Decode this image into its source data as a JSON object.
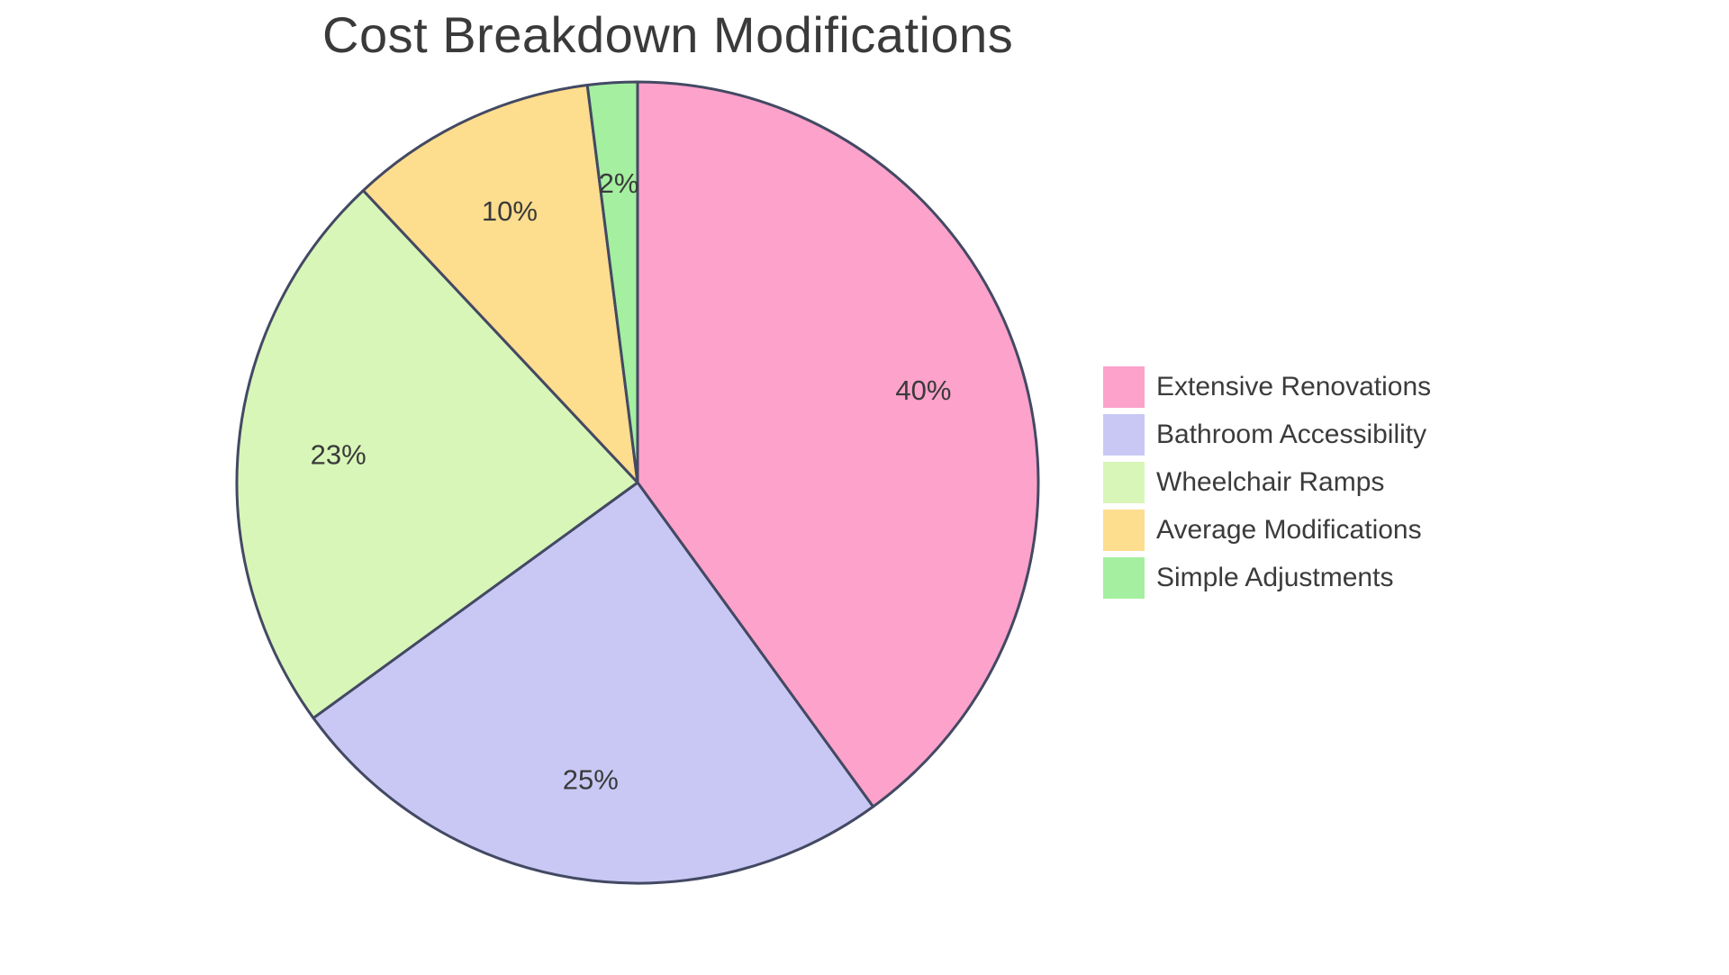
{
  "page": {
    "background_color": "#ffffff"
  },
  "chart_data": {
    "type": "pie",
    "title": "Cost Breakdown Modifications",
    "labels": [
      "Extensive Renovations",
      "Bathroom Accessibility",
      "Wheelchair Ramps",
      "Average Modifications",
      "Simple Adjustments"
    ],
    "values": [
      40,
      25,
      23,
      10,
      2
    ],
    "percent_labels": [
      "40%",
      "25%",
      "23%",
      "10%",
      "2%"
    ],
    "slice_colors": [
      "#FCA2CB",
      "#C9C8F4",
      "#D8F6B8",
      "#FDDD8E",
      "#A5EFA0"
    ],
    "slice_border_color": "#434963",
    "label_color": "#3a3a3a",
    "title_color": "#3a3a3a",
    "start_angle_deg": 90,
    "direction": "clockwise",
    "legend_position": "right",
    "grid": false
  }
}
